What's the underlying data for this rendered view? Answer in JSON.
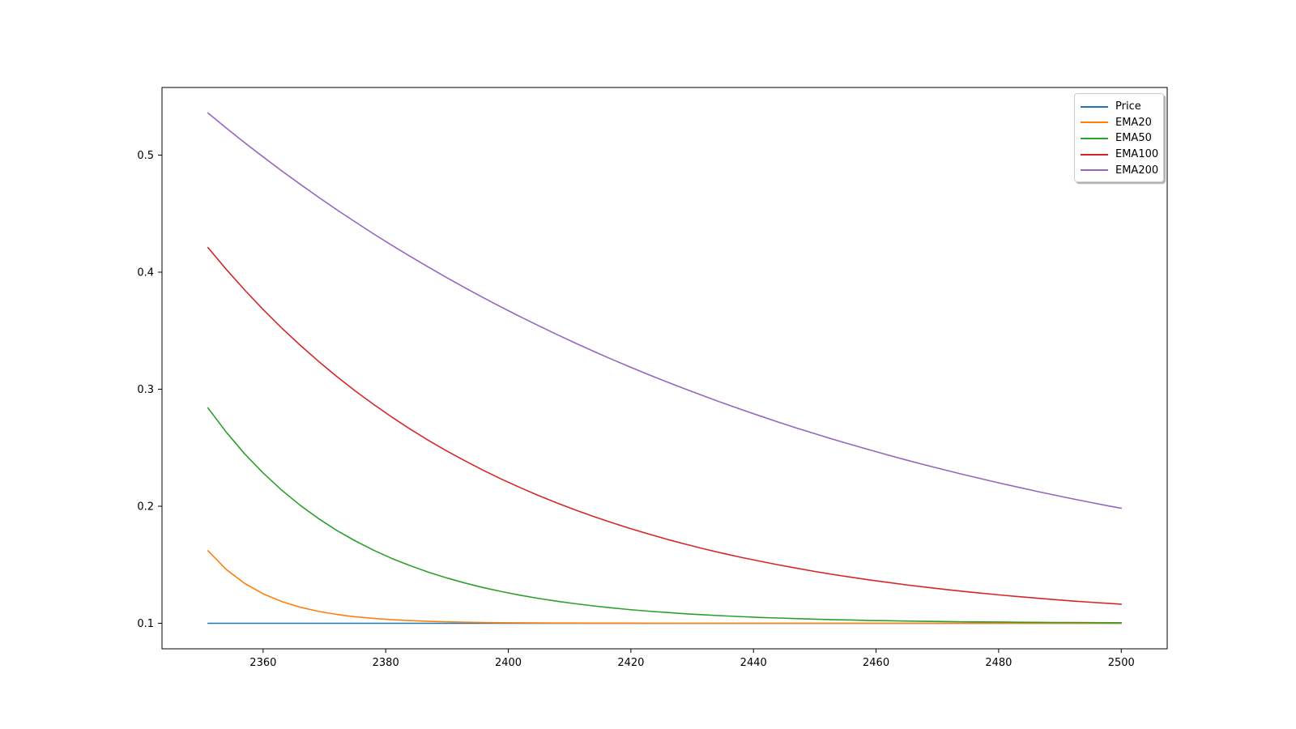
{
  "figure": {
    "background": "#ffffff"
  },
  "chart_data": {
    "type": "line",
    "title": "",
    "xlabel": "",
    "ylabel": "",
    "grid": false,
    "xlim": [
      2343.5,
      2507.5
    ],
    "ylim": [
      0.0782,
      0.5578
    ],
    "legend_position": "upper right",
    "axis_color": "#000000",
    "xticks": {
      "values": [
        2360,
        2380,
        2400,
        2420,
        2440,
        2460,
        2480,
        2500
      ],
      "labels": [
        "2360",
        "2380",
        "2400",
        "2420",
        "2440",
        "2460",
        "2480",
        "2500"
      ]
    },
    "yticks": {
      "values": [
        0.1,
        0.2,
        0.3,
        0.4,
        0.5
      ],
      "labels": [
        "0.1",
        "0.2",
        "0.3",
        "0.4",
        "0.5"
      ]
    },
    "x": [
      2351,
      2354,
      2357,
      2360,
      2363,
      2366,
      2369,
      2372,
      2375,
      2378,
      2381,
      2384,
      2387,
      2390,
      2393,
      2396,
      2399,
      2402,
      2405,
      2408,
      2411,
      2414,
      2417,
      2420,
      2423,
      2426,
      2429,
      2432,
      2435,
      2438,
      2441,
      2444,
      2447,
      2450,
      2453,
      2456,
      2459,
      2462,
      2465,
      2468,
      2471,
      2474,
      2477,
      2480,
      2483,
      2486,
      2489,
      2492,
      2495,
      2498,
      2500
    ],
    "series": [
      {
        "name": "Price",
        "color": "#1f77b4",
        "values": [
          0.1,
          0.1,
          0.1,
          0.1,
          0.1,
          0.1,
          0.1,
          0.1,
          0.1,
          0.1,
          0.1,
          0.1,
          0.1,
          0.1,
          0.1,
          0.1,
          0.1,
          0.1,
          0.1,
          0.1,
          0.1,
          0.1,
          0.1,
          0.1,
          0.1,
          0.1,
          0.1,
          0.1,
          0.1,
          0.1,
          0.1,
          0.1,
          0.1,
          0.1,
          0.1,
          0.1,
          0.1,
          0.1,
          0.1,
          0.1,
          0.1,
          0.1,
          0.1,
          0.1,
          0.1,
          0.1,
          0.1,
          0.1,
          0.1,
          0.1,
          0.1
        ]
      },
      {
        "name": "EMA20",
        "color": "#ff7f0e",
        "values": [
          0.162,
          0.1459,
          0.134,
          0.1252,
          0.1187,
          0.1138,
          0.1102,
          0.1076,
          0.1056,
          0.1042,
          0.1031,
          0.1023,
          0.1017,
          0.1013,
          0.1009,
          0.1007,
          0.1005,
          0.1004,
          0.1003,
          0.1002,
          0.1002,
          0.1001,
          0.1001,
          0.1001,
          0.1,
          0.1,
          0.1,
          0.1,
          0.1,
          0.1,
          0.1,
          0.1,
          0.1,
          0.1,
          0.1,
          0.1,
          0.1,
          0.1,
          0.1,
          0.1,
          0.1,
          0.1,
          0.1,
          0.1,
          0.1,
          0.1,
          0.1,
          0.1,
          0.1,
          0.1,
          0.1
        ]
      },
      {
        "name": "EMA50",
        "color": "#2ca02c",
        "values": [
          0.284,
          0.2632,
          0.2447,
          0.2284,
          0.2139,
          0.201,
          0.1896,
          0.1794,
          0.1705,
          0.1625,
          0.1554,
          0.1492,
          0.1436,
          0.1387,
          0.1343,
          0.1304,
          0.127,
          0.1239,
          0.1212,
          0.1188,
          0.1167,
          0.1148,
          0.1131,
          0.1116,
          0.1103,
          0.1092,
          0.1081,
          0.1072,
          0.1064,
          0.1057,
          0.105,
          0.1045,
          0.104,
          0.1035,
          0.1031,
          0.1028,
          0.1024,
          0.1022,
          0.1019,
          0.1017,
          0.1015,
          0.1013,
          0.1012,
          0.1011,
          0.1009,
          0.1008,
          0.1007,
          0.1007,
          0.1006,
          0.1005,
          0.1005
        ]
      },
      {
        "name": "EMA100",
        "color": "#d62728",
        "values": [
          0.421,
          0.4023,
          0.3847,
          0.3681,
          0.3525,
          0.3378,
          0.324,
          0.3109,
          0.2986,
          0.2871,
          0.2762,
          0.2659,
          0.2562,
          0.2471,
          0.2386,
          0.2305,
          0.2229,
          0.2158,
          0.209,
          0.2027,
          0.1967,
          0.1911,
          0.1858,
          0.1808,
          0.1761,
          0.1716,
          0.1675,
          0.1635,
          0.1598,
          0.1563,
          0.1531,
          0.15,
          0.1471,
          0.1443,
          0.1417,
          0.1393,
          0.137,
          0.1349,
          0.1328,
          0.1309,
          0.1291,
          0.1274,
          0.1258,
          0.1243,
          0.1229,
          0.1216,
          0.1203,
          0.1191,
          0.118,
          0.117,
          0.1163
        ]
      },
      {
        "name": "EMA200",
        "color": "#9467bd",
        "values": [
          0.536,
          0.5231,
          0.5106,
          0.4985,
          0.4867,
          0.4753,
          0.4642,
          0.4534,
          0.443,
          0.4328,
          0.423,
          0.4135,
          0.4042,
          0.3952,
          0.3865,
          0.378,
          0.3698,
          0.3618,
          0.3541,
          0.3466,
          0.3393,
          0.3322,
          0.3253,
          0.3187,
          0.3122,
          0.306,
          0.2999,
          0.294,
          0.2882,
          0.2827,
          0.2773,
          0.272,
          0.2669,
          0.262,
          0.2572,
          0.2526,
          0.2481,
          0.2437,
          0.2394,
          0.2353,
          0.2313,
          0.2274,
          0.2237,
          0.22,
          0.2165,
          0.213,
          0.2097,
          0.2064,
          0.2033,
          0.2002,
          0.1983
        ]
      }
    ]
  }
}
